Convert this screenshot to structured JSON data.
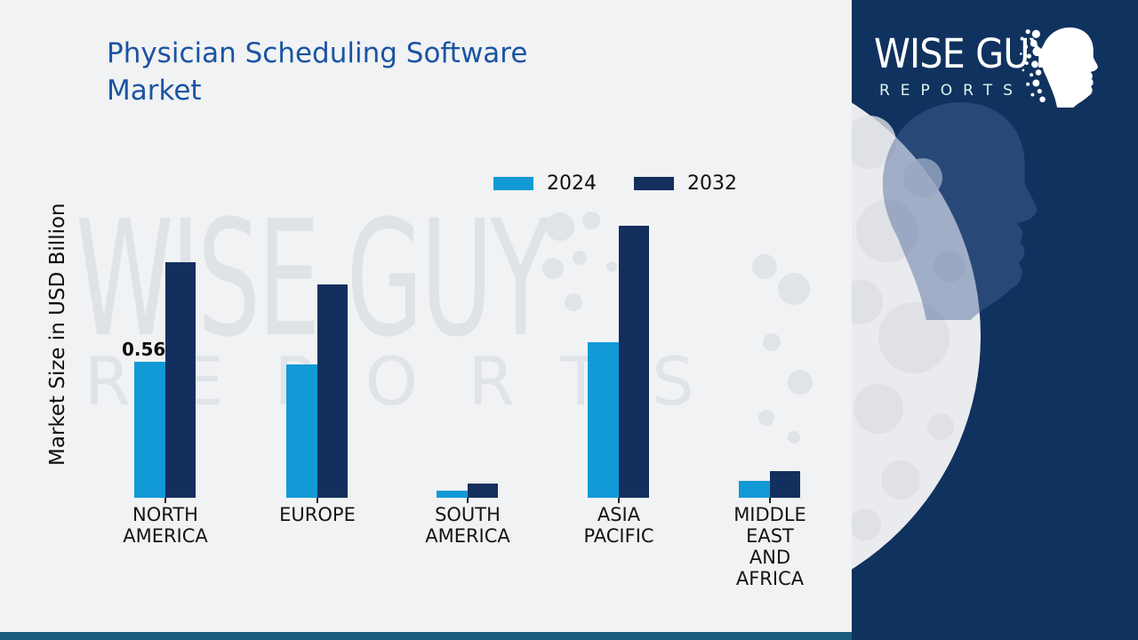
{
  "title": "Physician Scheduling Software Market",
  "annotation": {
    "text": "0.56"
  },
  "watermark": {
    "line1": "WISE GUY",
    "line2": "REPORTS"
  },
  "logo": {
    "wordmark": "WISE GUY",
    "subtitle": "REPORTS"
  },
  "colors": {
    "series_2024": "#129ad7",
    "series_2032": "#132f5d",
    "title_blue": "#1a54a3",
    "panel_navy": "#10325f",
    "bottom_strip_teal": "#1a5d7e",
    "background": "#f1f2f3"
  },
  "chart_data": {
    "type": "bar",
    "title": "Physician Scheduling Software Market",
    "categories": [
      "NORTH AMERICA",
      "EUROPE",
      "SOUTH AMERICA",
      "ASIA PACIFIC",
      "MIDDLE EAST AND AFRICA"
    ],
    "series": [
      {
        "name": "2024",
        "color": "#129ad7",
        "values": [
          0.56,
          0.55,
          0.03,
          0.64,
          0.07
        ]
      },
      {
        "name": "2032",
        "color": "#132f5d",
        "values": [
          0.97,
          0.88,
          0.06,
          1.12,
          0.11
        ]
      }
    ],
    "xlabel": "",
    "ylabel": "Market Size in USD Billion",
    "ylim": [
      0,
      1.2
    ],
    "grid": false,
    "legend_position": "top",
    "data_labels": [
      {
        "series": "2024",
        "category": "NORTH AMERICA",
        "text": "0.56"
      }
    ]
  }
}
